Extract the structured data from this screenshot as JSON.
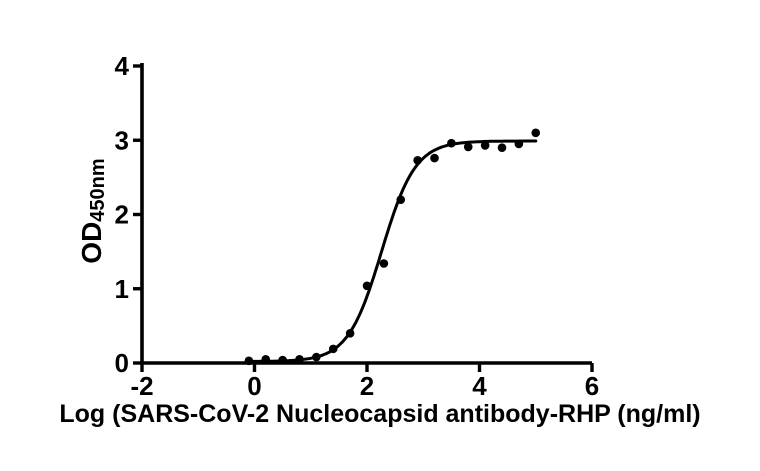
{
  "figure": {
    "background_color": "#ffffff",
    "foreground_color": "#000000"
  },
  "chart_data": {
    "type": "scatter",
    "title": "",
    "xlabel": "Log (SARS-CoV-2 Nucleocapsid antibody-RHP (ng/ml)",
    "ylabel_base": "OD",
    "ylabel_subscript": "450nm",
    "xlim": [
      -2,
      6
    ],
    "ylim": [
      0,
      4
    ],
    "x_ticks": [
      {
        "value": -2,
        "label": "-2"
      },
      {
        "value": 0,
        "label": "0"
      },
      {
        "value": 2,
        "label": "2"
      },
      {
        "value": 4,
        "label": "4"
      },
      {
        "value": 6,
        "label": "6"
      }
    ],
    "y_ticks": [
      {
        "value": 0,
        "label": "0"
      },
      {
        "value": 1,
        "label": "1"
      },
      {
        "value": 2,
        "label": "2"
      },
      {
        "value": 3,
        "label": "3"
      },
      {
        "value": 4,
        "label": "4"
      }
    ],
    "grid": false,
    "legend_position": "none",
    "marker_color": "#000000",
    "curve_color": "#000000",
    "series": [
      {
        "name": "SARS-CoV-2 Nucleocapsid antibody-RHP",
        "points": [
          {
            "x": -0.1,
            "y": 0.03
          },
          {
            "x": 0.2,
            "y": 0.05
          },
          {
            "x": 0.5,
            "y": 0.04
          },
          {
            "x": 0.8,
            "y": 0.05
          },
          {
            "x": 1.1,
            "y": 0.08
          },
          {
            "x": 1.4,
            "y": 0.19
          },
          {
            "x": 1.7,
            "y": 0.4
          },
          {
            "x": 2.0,
            "y": 1.04
          },
          {
            "x": 2.3,
            "y": 1.34
          },
          {
            "x": 2.6,
            "y": 2.2
          },
          {
            "x": 2.9,
            "y": 2.73
          },
          {
            "x": 3.2,
            "y": 2.76
          },
          {
            "x": 3.5,
            "y": 2.96
          },
          {
            "x": 3.8,
            "y": 2.91
          },
          {
            "x": 4.1,
            "y": 2.93
          },
          {
            "x": 4.4,
            "y": 2.9
          },
          {
            "x": 4.7,
            "y": 2.95
          },
          {
            "x": 5.0,
            "y": 3.1
          }
        ]
      }
    ],
    "curve_fit": {
      "model": "4PL sigmoid",
      "bottom": 0.02,
      "top": 2.99,
      "log_ec50": 2.26,
      "hill_slope": 1.45,
      "x_range": [
        -0.12,
        5.02
      ]
    }
  }
}
